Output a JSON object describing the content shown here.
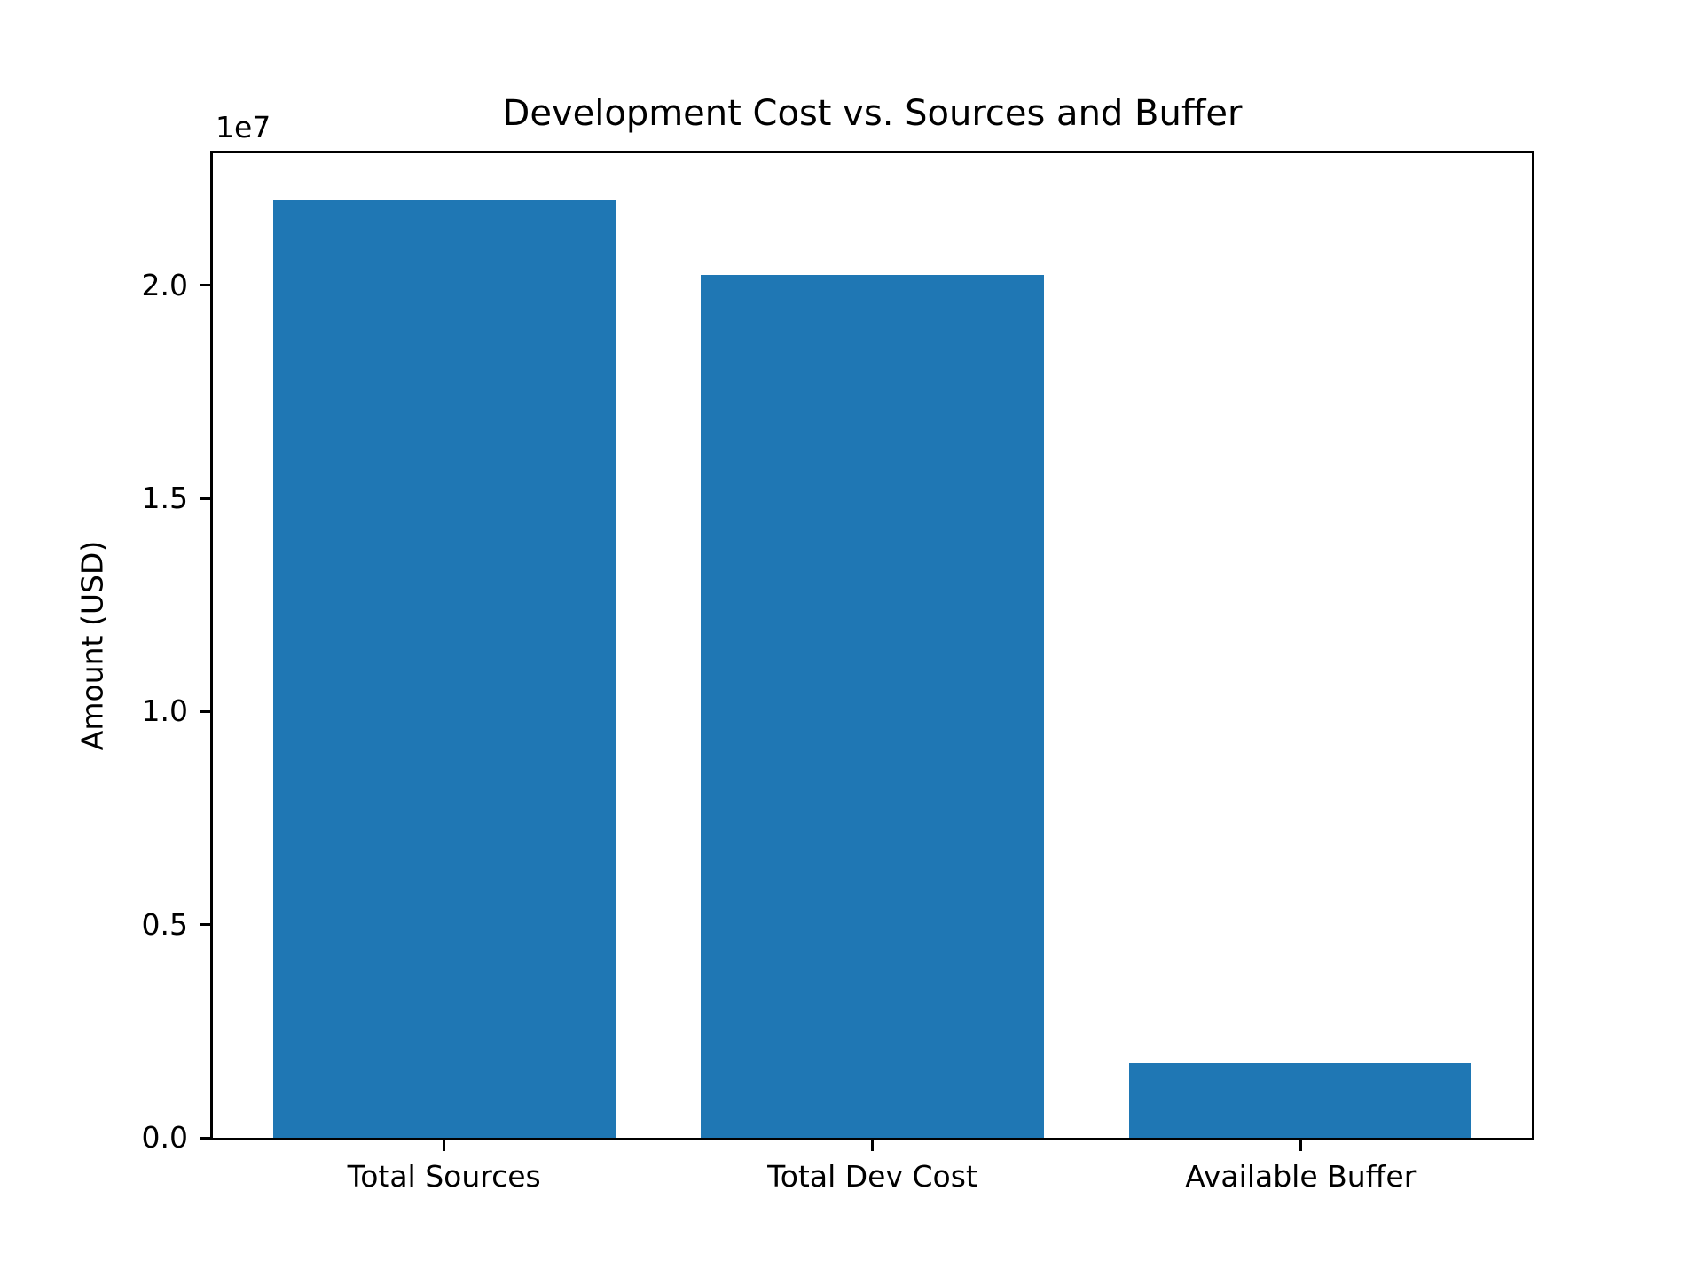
{
  "chart_data": {
    "type": "bar",
    "title": "Development Cost vs. Sources and Buffer",
    "ylabel": "Amount (USD)",
    "xlabel": "",
    "y_offset_label": "1e7",
    "categories": [
      "Total Sources",
      "Total Dev Cost",
      "Available Buffer"
    ],
    "values": [
      22000000,
      20250000,
      1750000
    ],
    "ytick_values": [
      0,
      5000000,
      10000000,
      15000000,
      20000000
    ],
    "ytick_labels": [
      "0.0",
      "0.5",
      "1.0",
      "1.5",
      "2.0"
    ],
    "ylim": [
      0,
      23100000
    ],
    "xlim": [
      -0.54,
      2.54
    ],
    "bar_width": 0.8,
    "bar_color": "#1f77b4",
    "grid": false,
    "legend": null
  }
}
